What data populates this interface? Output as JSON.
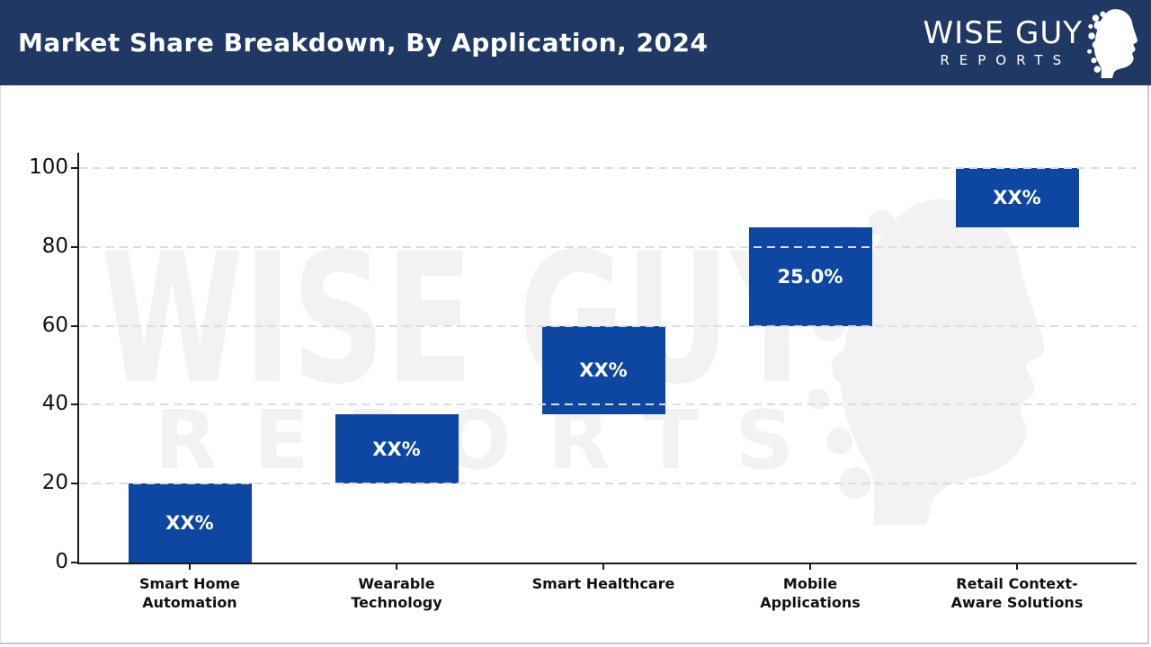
{
  "header": {
    "title": "Market Share Breakdown, By Application, 2024",
    "logo": {
      "line1": "WISE GUY",
      "line2": "REPORTS"
    }
  },
  "watermark": {
    "line1": "WISE GUY",
    "line2": "REPORTS"
  },
  "colors": {
    "header_bg": "#1f3864",
    "bar": "#0d47a1",
    "bar_label": "#ffffff",
    "gridline": "#dcdcdc",
    "axis": "#1a1a1a",
    "watermark": "#f2f2f2"
  },
  "chart_data": {
    "type": "bar",
    "subtype": "waterfall",
    "title": "Market Share Breakdown, By Application, 2024",
    "categories": [
      "Smart Home\nAutomation",
      "Wearable\nTechnology",
      "Smart Healthcare",
      "Mobile\nApplications",
      "Retail Context-\nAware Solutions"
    ],
    "bars": [
      {
        "category": "Smart Home Automation",
        "start": 0,
        "end": 20,
        "label": "XX%"
      },
      {
        "category": "Wearable Technology",
        "start": 20,
        "end": 37.5,
        "label": "XX%"
      },
      {
        "category": "Smart Healthcare",
        "start": 37.5,
        "end": 60,
        "label": "XX%"
      },
      {
        "category": "Mobile Applications",
        "start": 60,
        "end": 85,
        "label": "25.0%"
      },
      {
        "category": "Retail Context-Aware Solutions",
        "start": 85,
        "end": 100,
        "label": "XX%"
      }
    ],
    "xlabel": "",
    "ylabel": "",
    "ylim": [
      0,
      100
    ],
    "yticks": [
      0,
      20,
      40,
      60,
      80,
      100
    ],
    "grid": "horizontal dashed, drawn above bars",
    "legend": "none",
    "bar_color": "#0d47a1",
    "label_color": "#ffffff"
  }
}
